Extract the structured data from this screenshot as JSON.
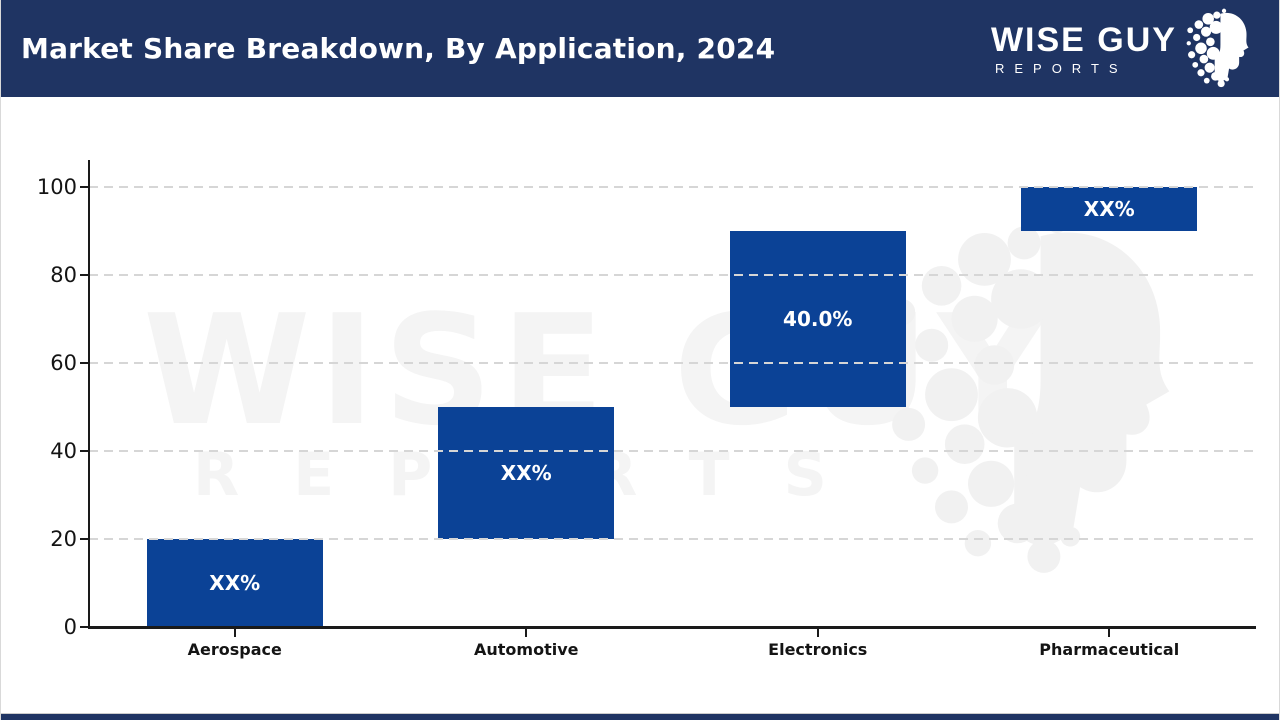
{
  "header": {
    "title": "Market Share Breakdown, By Application, 2024",
    "logo": {
      "line1": "WISE GUY",
      "line2": "REPORTS"
    }
  },
  "watermark": {
    "line1": "WISE GUY",
    "line2": "REPORTS"
  },
  "colors": {
    "header_navy": "#1f3463",
    "bar_blue": "#0b4296",
    "grid_gray": "#d6d6d6",
    "watermark_gray": "#f4f4f4",
    "bar_label_white": "#ffffff"
  },
  "chart_data": {
    "type": "bar",
    "subtype": "waterfall",
    "title": "Market Share Breakdown, By Application, 2024",
    "categories": [
      "Aerospace",
      "Automotive",
      "Electronics",
      "Pharmaceutical"
    ],
    "bars": [
      {
        "category": "Aerospace",
        "start": 0,
        "end": 20,
        "label": "XX%"
      },
      {
        "category": "Automotive",
        "start": 20,
        "end": 50,
        "label": "XX%"
      },
      {
        "category": "Electronics",
        "start": 50,
        "end": 90,
        "label": "40.0%"
      },
      {
        "category": "Pharmaceutical",
        "start": 90,
        "end": 100,
        "label": "XX%"
      }
    ],
    "yticks": [
      0,
      20,
      40,
      60,
      80,
      100
    ],
    "ylim": [
      0,
      106
    ],
    "xlabel": "",
    "ylabel": "",
    "grid": "dashed-horizontal",
    "legend": "none"
  }
}
